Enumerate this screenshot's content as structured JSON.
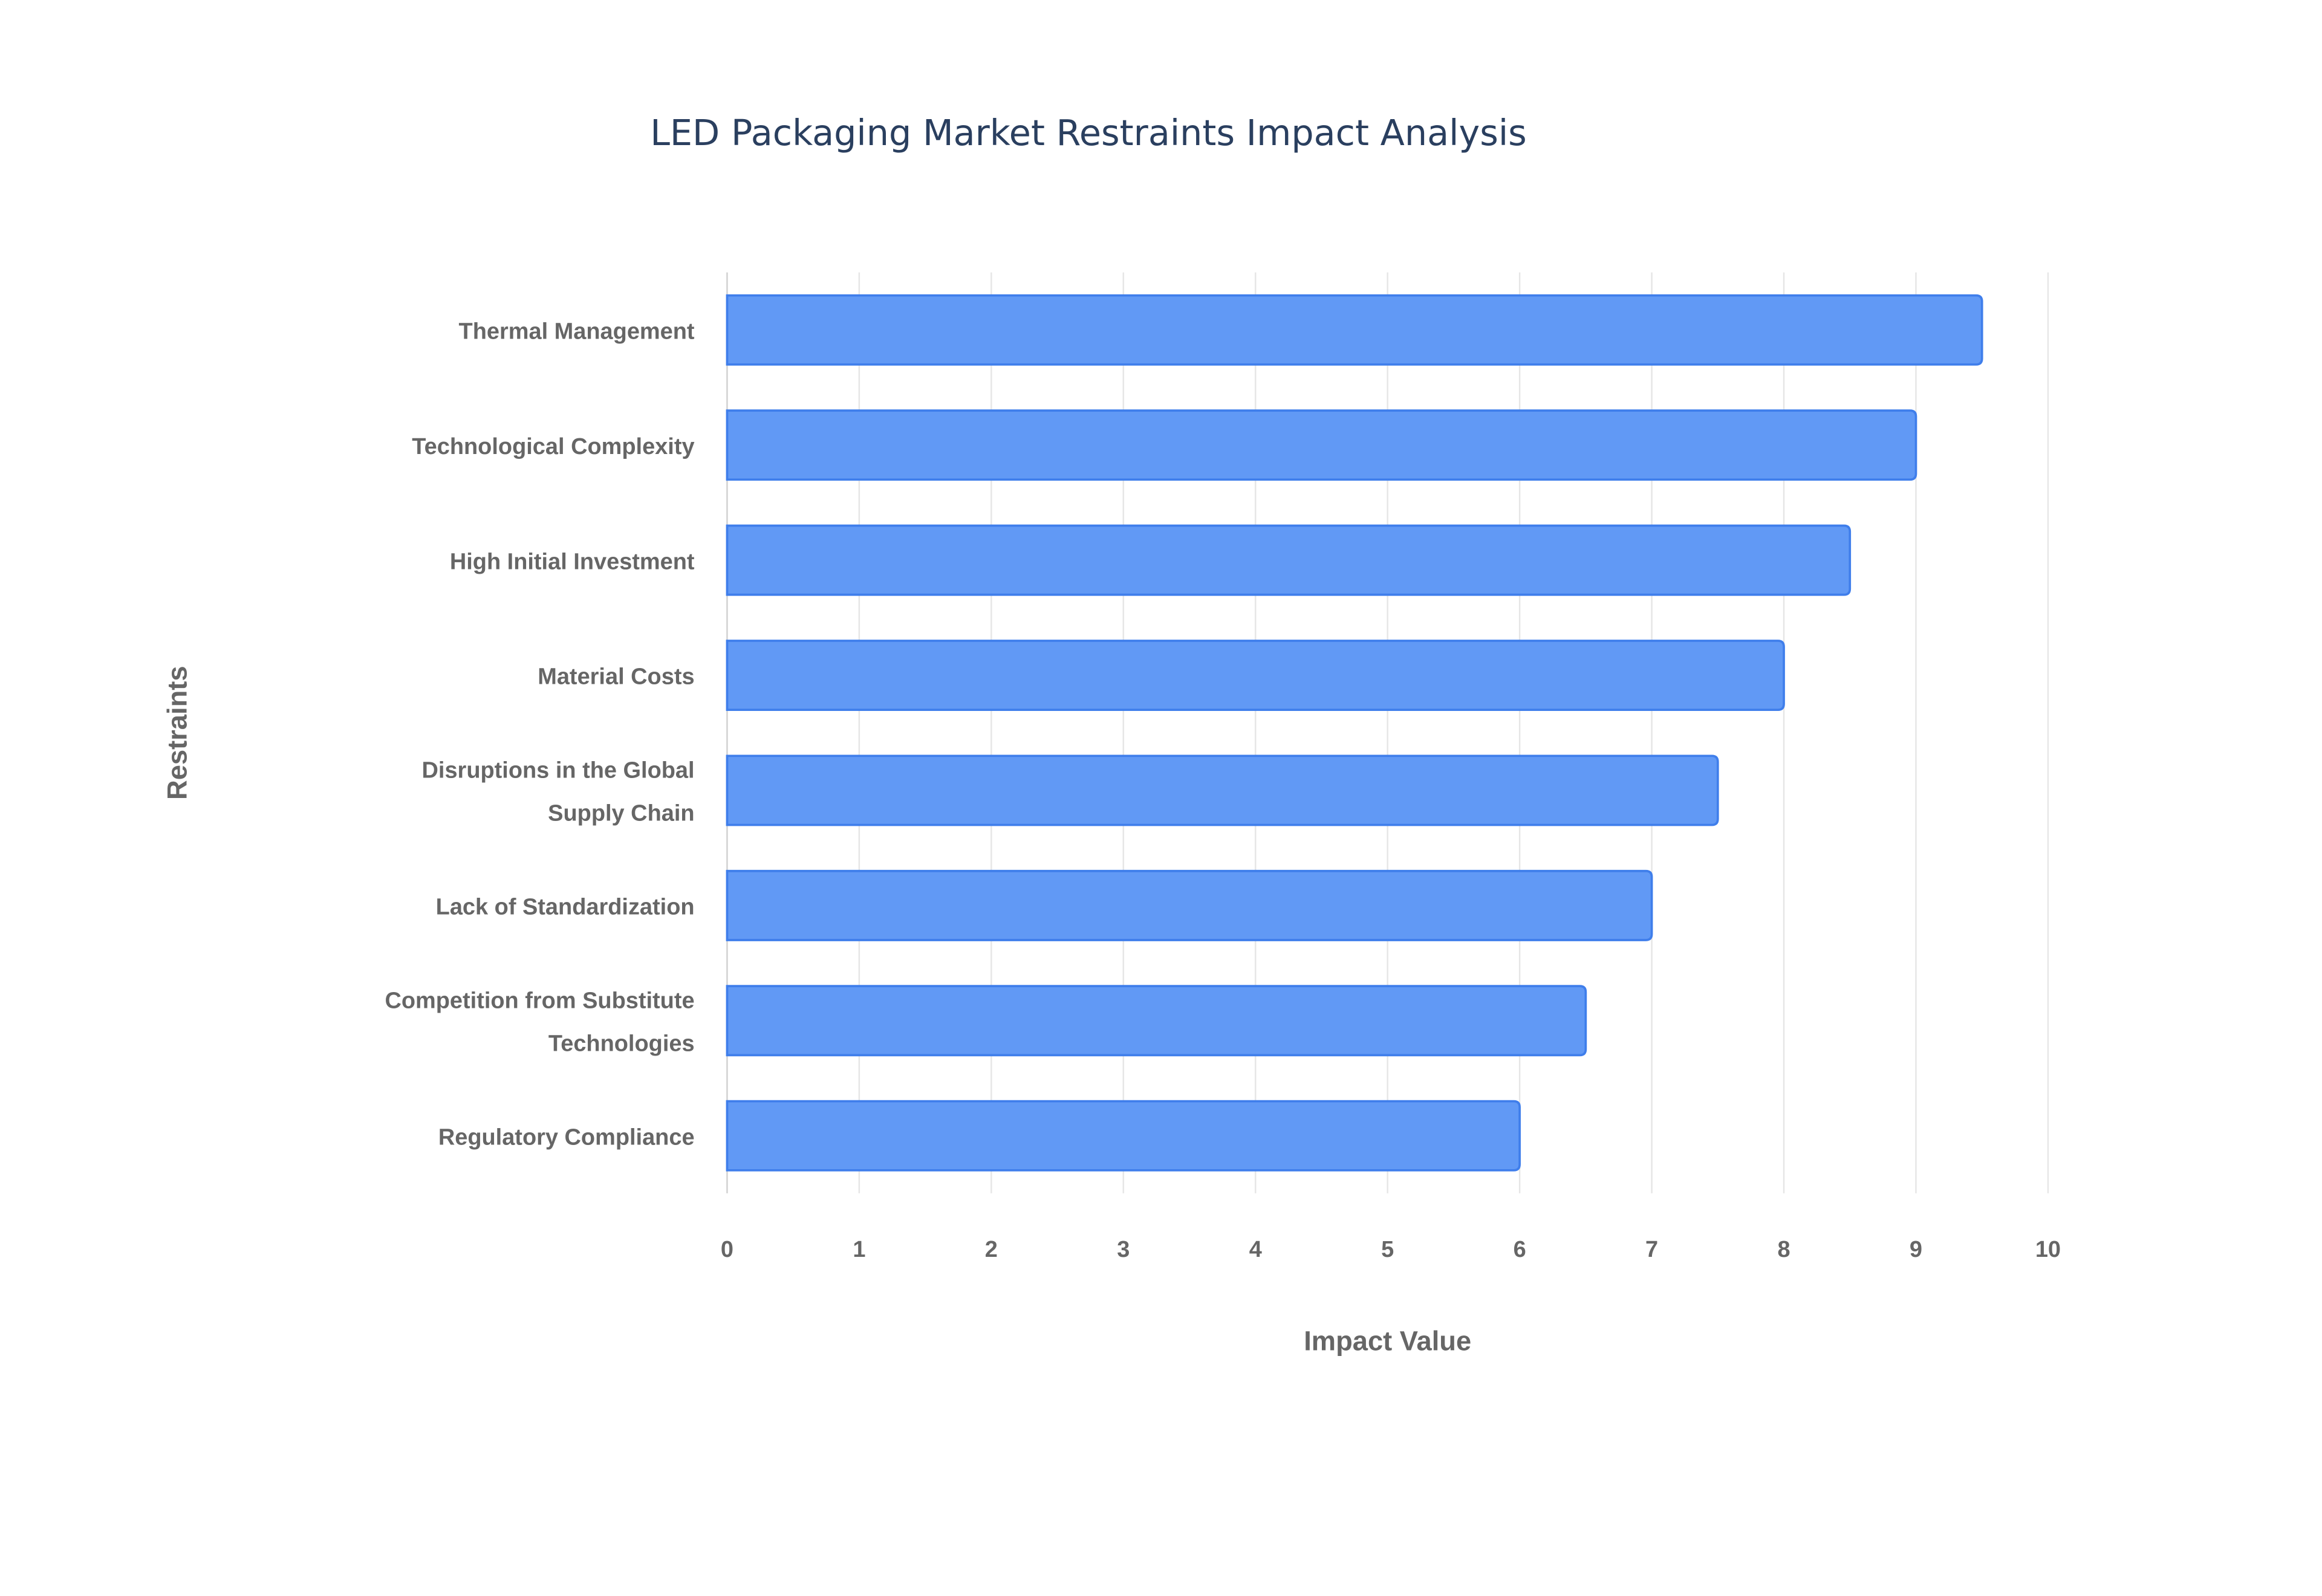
{
  "chart_data": {
    "type": "bar",
    "orientation": "horizontal",
    "title": "LED Packaging Market Restraints Impact Analysis",
    "xlabel": "Impact Value",
    "ylabel": "Restraints",
    "xlim": [
      0,
      10
    ],
    "xticks": [
      "0",
      "1",
      "2",
      "3",
      "4",
      "5",
      "6",
      "7",
      "8",
      "9",
      "10"
    ],
    "grid": true,
    "categories": [
      [
        "Thermal Management"
      ],
      [
        "Technological Complexity"
      ],
      [
        "High Initial Investment"
      ],
      [
        "Material Costs"
      ],
      [
        "Disruptions in the Global",
        "Supply Chain"
      ],
      [
        "Lack of Standardization"
      ],
      [
        "Competition from Substitute",
        "Technologies"
      ],
      [
        "Regulatory Compliance"
      ]
    ],
    "values": [
      9.5,
      9,
      8.5,
      8,
      7.5,
      7,
      6.5,
      6
    ],
    "colors": {
      "bar_fill": "#6199F5",
      "bar_border": "#3F7EEB",
      "grid": "#e6e6e6"
    }
  }
}
